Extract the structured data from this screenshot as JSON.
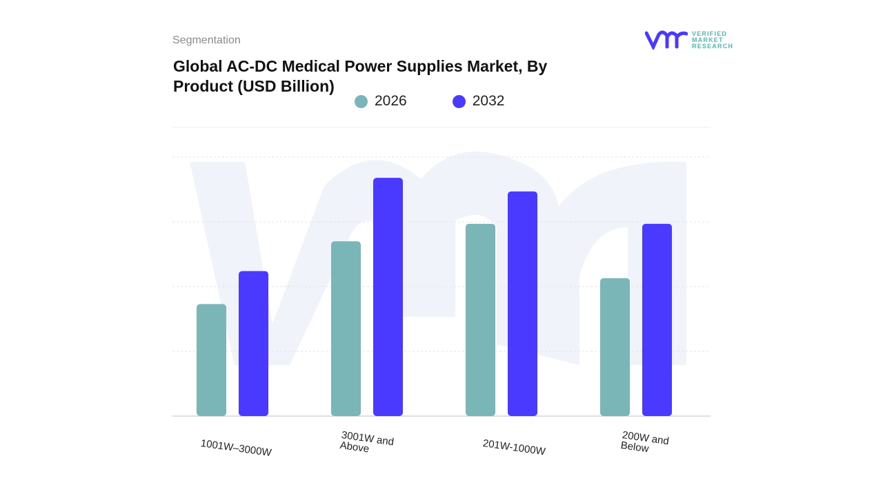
{
  "header": {
    "section": "Segmentation",
    "title": "Global AC-DC Medical Power Supplies Market, By Product (USD Billion)"
  },
  "logo": {
    "mark": "vmr",
    "text": [
      "VERIFIED",
      "MARKET",
      "RESEARCH"
    ]
  },
  "colors": {
    "series_2026": "#7ab5b8",
    "series_2032": "#4a3aff",
    "grid": "#e3e3e3",
    "watermark": "#f1f3fb"
  },
  "chart_data": {
    "type": "bar",
    "title": "Global AC-DC Medical Power Supplies Market, By Product (USD Billion)",
    "categories": [
      "1001W–3000W",
      "3001W and Above",
      "201W-1000W",
      "200W and Below"
    ],
    "series": [
      {
        "name": "2026",
        "values": [
          1.73,
          2.7,
          2.97,
          2.13
        ]
      },
      {
        "name": "2032",
        "values": [
          2.24,
          3.68,
          3.47,
          2.97
        ]
      }
    ],
    "ylim": [
      0,
      4
    ],
    "y_tick_labels_shown": false,
    "grid": true,
    "legend": "top-center",
    "xlabel": "",
    "ylabel": ""
  }
}
